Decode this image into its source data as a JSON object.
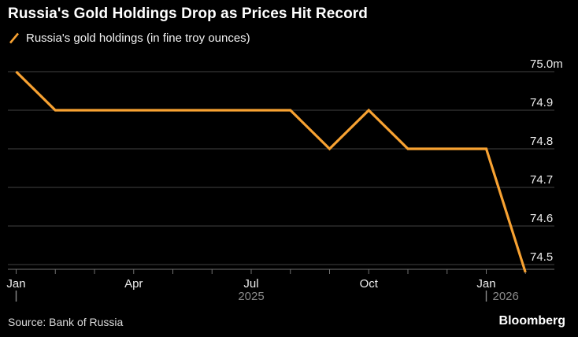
{
  "title": "Russia's Gold Holdings Drop as Prices Hit Record",
  "legend": {
    "series_label": "Russia's gold holdings (in fine troy ounces)"
  },
  "footer": {
    "source": "Source: Bank of Russia",
    "brand": "Bloomberg"
  },
  "colors": {
    "background": "#000000",
    "line": "#F8A232",
    "grid": "#424242",
    "axis": "#717171",
    "tick": "#717171",
    "text": "#ECECEC",
    "muted": "#8A8A8A"
  },
  "chart_data": {
    "type": "line",
    "title": "Russia's Gold Holdings Drop as Prices Hit Record",
    "series_name": "Russia's gold holdings (in fine troy ounces)",
    "unit": "million fine troy ounces",
    "x": [
      "Jan 2025",
      "Feb 2025",
      "Mar 2025",
      "Apr 2025",
      "May 2025",
      "Jun 2025",
      "Jul 2025",
      "Aug 2025",
      "Sep 2025",
      "Oct 2025",
      "Nov 2025",
      "Dec 2025",
      "Jan 2026",
      "Feb 2026"
    ],
    "values": [
      75.0,
      74.9,
      74.9,
      74.9,
      74.9,
      74.9,
      74.9,
      74.9,
      74.8,
      74.9,
      74.8,
      74.8,
      74.8,
      74.48
    ],
    "ylim": [
      74.45,
      75.02
    ],
    "yticks": [
      75.0,
      74.9,
      74.8,
      74.7,
      74.6,
      74.5
    ],
    "ytick_labels": [
      "75.0m",
      "74.9",
      "74.8",
      "74.7",
      "74.6",
      "74.5"
    ],
    "xtick_labels": [
      {
        "index": 0,
        "label": "Jan"
      },
      {
        "index": 3,
        "label": "Apr"
      },
      {
        "index": 6,
        "label": "Jul"
      },
      {
        "index": 9,
        "label": "Oct"
      },
      {
        "index": 12,
        "label": "Jan"
      }
    ],
    "year_markers": [
      {
        "index": 0,
        "label": "2025",
        "label_mode": "center",
        "center_index": 6
      },
      {
        "index": 12,
        "label": "2026",
        "label_mode": "beside"
      }
    ],
    "grid": true,
    "legend_position": "top-left",
    "yaxis_side": "right"
  }
}
